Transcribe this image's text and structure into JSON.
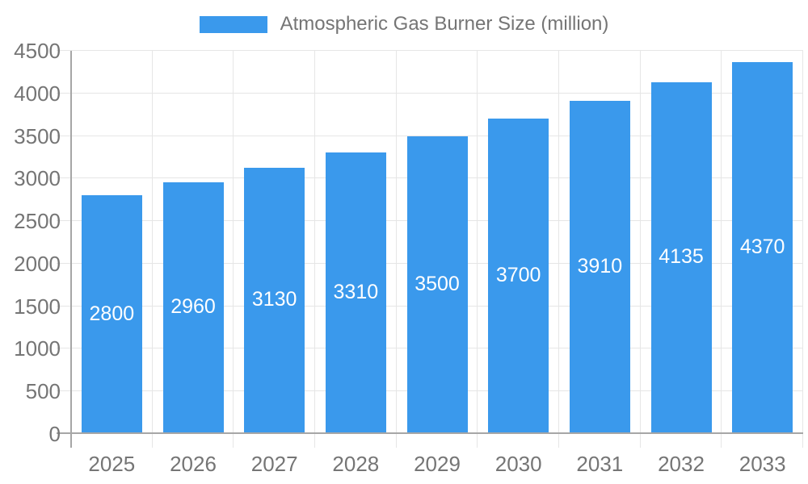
{
  "chart_data": {
    "type": "bar",
    "title": "",
    "legend_label": "Atmospheric Gas Burner Size (million)",
    "legend_position": "top",
    "categories": [
      "2025",
      "2026",
      "2027",
      "2028",
      "2029",
      "2030",
      "2031",
      "2032",
      "2033"
    ],
    "values": [
      2800,
      2960,
      3130,
      3310,
      3500,
      3700,
      3910,
      4135,
      4370
    ],
    "xlabel": "",
    "ylabel": "",
    "ylim": [
      0,
      4500
    ],
    "ytick_step": 500,
    "ytick_labels": [
      "0",
      "500",
      "1000",
      "1500",
      "2000",
      "2500",
      "3000",
      "3500",
      "4000",
      "4500"
    ],
    "grid": true,
    "value_labels": "inside-center",
    "colors": {
      "bar": "#3a99ec",
      "text": "#757575",
      "grid": "#e6e6e6",
      "axis": "#a6a6a6",
      "value_label": "#ffffff",
      "background": "#ffffff"
    }
  }
}
